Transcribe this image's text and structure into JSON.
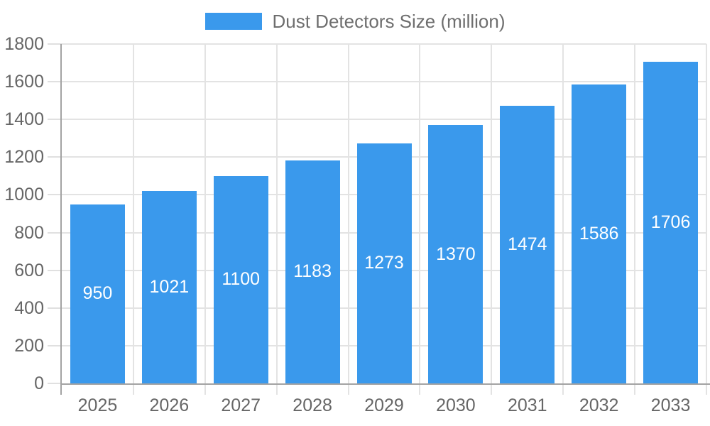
{
  "legend": {
    "label": "Dust Detectors Size (million)"
  },
  "colors": {
    "bar": "#3a99ec",
    "axis_line": "#a3a3a3",
    "gridline": "#e3e3e3",
    "axis_label_text": "#666666",
    "legend_text": "#6e6e6e",
    "value_label_text": "#ffffff",
    "background": "#ffffff"
  },
  "chart_data": {
    "type": "bar",
    "title": "Dust Detectors Size (million)",
    "categories": [
      "2025",
      "2026",
      "2027",
      "2028",
      "2029",
      "2030",
      "2031",
      "2032",
      "2033"
    ],
    "values": [
      950,
      1021,
      1100,
      1183,
      1273,
      1370,
      1474,
      1586,
      1706
    ],
    "series": [
      {
        "name": "Dust Detectors Size (million)",
        "values": [
          950,
          1021,
          1100,
          1183,
          1273,
          1370,
          1474,
          1586,
          1706
        ]
      }
    ],
    "xlabel": "",
    "ylabel": "",
    "ylim": [
      0,
      1800
    ],
    "ytick_step": 200,
    "yticks": [
      0,
      200,
      400,
      600,
      800,
      1000,
      1200,
      1400,
      1600,
      1800
    ],
    "grid": true,
    "legend_position": "top-center",
    "value_labels_position": "inside-center"
  }
}
